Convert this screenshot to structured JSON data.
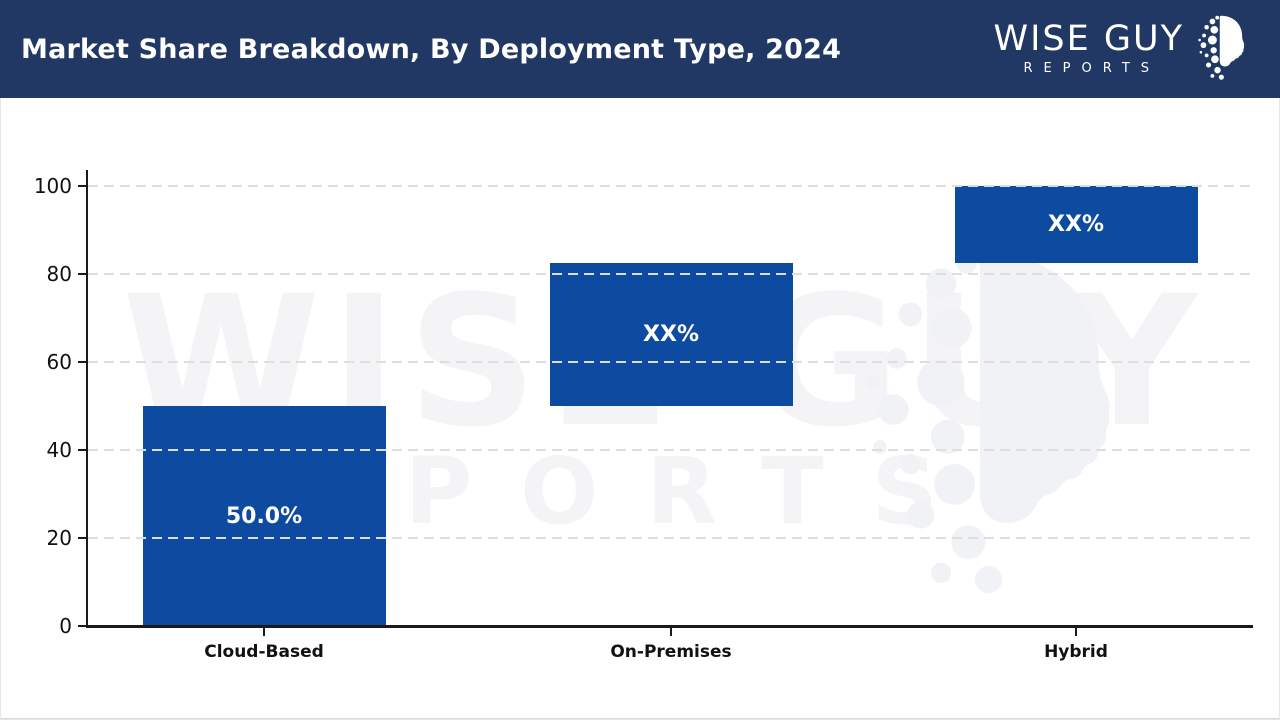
{
  "header": {
    "title": "Market Share Breakdown, By Deployment Type, 2024",
    "logo": {
      "line1": "WISE GUY",
      "line2": "REPORTS"
    }
  },
  "watermark": {
    "line1": "WISE GUY",
    "line2": "REPORTS"
  },
  "colors": {
    "header_bg": "#203863",
    "bar": "#0c4ba0",
    "gridline": "#dedede",
    "axis": "#1a1a1a",
    "bar_label_text": "#ffffff"
  },
  "chart_data": {
    "type": "bar",
    "subtype": "waterfall",
    "title": "Market Share Breakdown, By Deployment Type, 2024",
    "categories": [
      "Cloud-Based",
      "On-Premises",
      "Hybrid"
    ],
    "segments": [
      {
        "category": "Cloud-Based",
        "start": 0,
        "end": 50,
        "label": "50.0%"
      },
      {
        "category": "On-Premises",
        "start": 50,
        "end": 82.5,
        "label": "XX%"
      },
      {
        "category": "Hybrid",
        "start": 82.5,
        "end": 100,
        "label": "XX%"
      }
    ],
    "y_ticks": [
      0,
      20,
      40,
      60,
      80,
      100
    ],
    "ylim": [
      0,
      104
    ],
    "xlabel": "",
    "ylabel": "",
    "grid": "horizontal-dashed",
    "legend": "none"
  }
}
